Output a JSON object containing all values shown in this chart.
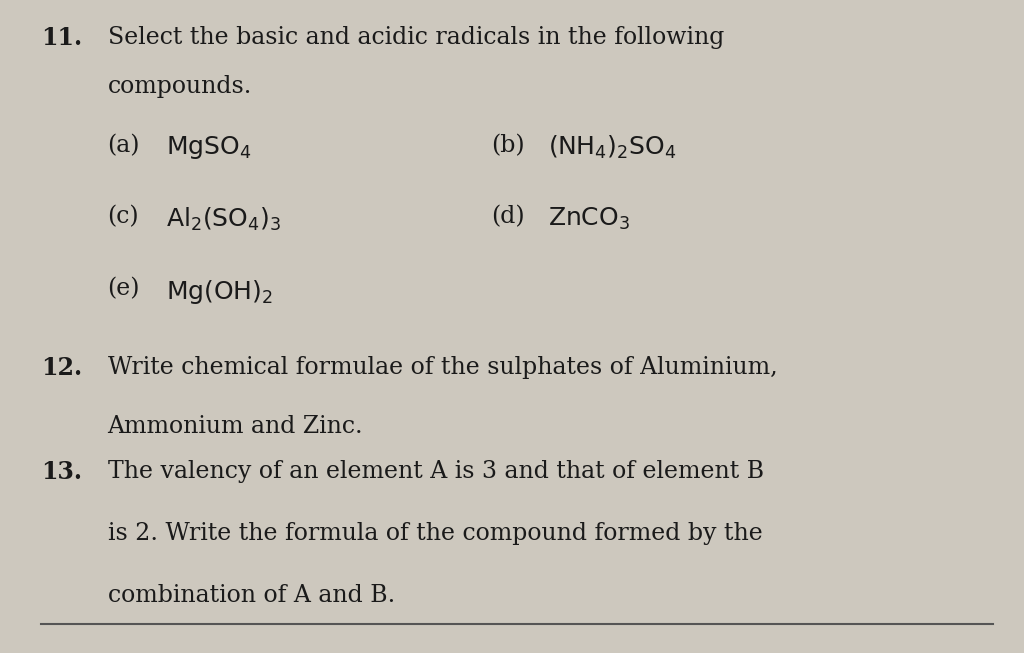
{
  "background_color": "#cdc8be",
  "text_color": "#1a1a1a",
  "line_color": "#555555",
  "q11_number": "11.",
  "q11_line1": "Select the basic and acidic radicals in the following",
  "q11_line2": "compounds.",
  "q11_a_label": "(a)",
  "q11_a_formula": [
    {
      "text": "MgSO",
      "style": "normal"
    },
    {
      "text": "4",
      "style": "sub"
    }
  ],
  "q11_b_label": "(b)",
  "q11_b_formula": [
    {
      "text": "(NH",
      "style": "normal"
    },
    {
      "text": "4",
      "style": "sub"
    },
    {
      "text": ")",
      "style": "normal"
    },
    {
      "text": "2",
      "style": "sub"
    },
    {
      "text": "SO",
      "style": "normal"
    },
    {
      "text": "4",
      "style": "sub"
    }
  ],
  "q11_c_label": "(c)",
  "q11_c_formula": [
    {
      "text": "Al",
      "style": "normal"
    },
    {
      "text": "2",
      "style": "sub"
    },
    {
      "text": "(SO",
      "style": "normal"
    },
    {
      "text": "4",
      "style": "sub"
    },
    {
      "text": ")",
      "style": "normal"
    },
    {
      "text": "3",
      "style": "sub"
    }
  ],
  "q11_d_label": "(d)",
  "q11_d_formula": [
    {
      "text": "ZnCO",
      "style": "normal"
    },
    {
      "text": "3",
      "style": "sub"
    }
  ],
  "q11_e_label": "(e)",
  "q11_e_formula": [
    {
      "text": "Mg(OH)",
      "style": "normal"
    },
    {
      "text": "2",
      "style": "sub"
    }
  ],
  "q12_number": "12.",
  "q12_line1": "Write chemical formulae of the sulphates of Aluminium,",
  "q12_line2": "Ammonium and Zinc.",
  "q13_number": "13.",
  "q13_line1": "The valency of an element A is 3 and that of element B",
  "q13_line2": "is 2. Write the formula of the compound formed by the",
  "q13_line3": "combination of A and B.",
  "font_size_number": 17,
  "font_size_text": 17,
  "font_size_formula": 18
}
